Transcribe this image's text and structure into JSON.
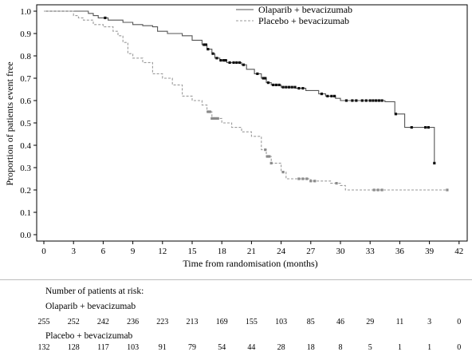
{
  "chart_data": {
    "type": "line",
    "xlabel": "Time from randomisation (months)",
    "ylabel": "Proportion of patients event free",
    "xlim": [
      0,
      42
    ],
    "ylim": [
      0,
      1.0
    ],
    "x_ticks": [
      0,
      3,
      6,
      9,
      12,
      15,
      18,
      21,
      24,
      27,
      30,
      33,
      36,
      39,
      42
    ],
    "y_ticks": [
      "0.0",
      "0.1",
      "0.2",
      "0.3",
      "0.4",
      "0.5",
      "0.6",
      "0.7",
      "0.8",
      "0.9",
      "1.0"
    ],
    "legend_position": "top-right",
    "series": [
      {
        "name": "Olaparib + bevacizumab",
        "color": "#555555",
        "style": "solid",
        "steps": [
          [
            0,
            1.0
          ],
          [
            4.5,
            0.99
          ],
          [
            5,
            0.98
          ],
          [
            5.5,
            0.97
          ],
          [
            6.5,
            0.96
          ],
          [
            8,
            0.95
          ],
          [
            9,
            0.94
          ],
          [
            10,
            0.935
          ],
          [
            11,
            0.93
          ],
          [
            11.5,
            0.91
          ],
          [
            12.5,
            0.9
          ],
          [
            14,
            0.89
          ],
          [
            15,
            0.87
          ],
          [
            16,
            0.85
          ],
          [
            16.5,
            0.83
          ],
          [
            17,
            0.81
          ],
          [
            17.3,
            0.79
          ],
          [
            17.8,
            0.78
          ],
          [
            18.5,
            0.77
          ],
          [
            20,
            0.76
          ],
          [
            20.5,
            0.74
          ],
          [
            21.3,
            0.72
          ],
          [
            22,
            0.7
          ],
          [
            22.5,
            0.68
          ],
          [
            23,
            0.67
          ],
          [
            24,
            0.66
          ],
          [
            25.5,
            0.655
          ],
          [
            26.5,
            0.645
          ],
          [
            27.8,
            0.63
          ],
          [
            28.5,
            0.62
          ],
          [
            29.5,
            0.61
          ],
          [
            30,
            0.6
          ],
          [
            34.5,
            0.595
          ],
          [
            35.5,
            0.54
          ],
          [
            36.5,
            0.48
          ],
          [
            39.5,
            0.32
          ]
        ],
        "censor_x": [
          6.2,
          16.2,
          16.4,
          16.6,
          17.1,
          17.5,
          17.9,
          18.2,
          18.4,
          18.8,
          19.2,
          19.5,
          19.8,
          20.2,
          21.6,
          22.2,
          22.4,
          22.7,
          23.2,
          23.5,
          23.8,
          24.2,
          24.5,
          24.8,
          25.1,
          25.4,
          25.8,
          26.2,
          28.1,
          28.7,
          29.1,
          29.4,
          30.6,
          31.2,
          31.6,
          32.2,
          32.6,
          33.0,
          33.3,
          33.6,
          33.9,
          34.2,
          35.6,
          37.2,
          38.6,
          38.9,
          39.5
        ],
        "end_x": 39.6
      },
      {
        "name": "Placebo + bevacizumab",
        "color": "#9a9a9a",
        "style": "dashed",
        "steps": [
          [
            0,
            1.0
          ],
          [
            3,
            0.98
          ],
          [
            3.5,
            0.97
          ],
          [
            4,
            0.96
          ],
          [
            5,
            0.94
          ],
          [
            6,
            0.93
          ],
          [
            7,
            0.91
          ],
          [
            7.5,
            0.89
          ],
          [
            8,
            0.86
          ],
          [
            8.5,
            0.81
          ],
          [
            9,
            0.79
          ],
          [
            10,
            0.77
          ],
          [
            11,
            0.72
          ],
          [
            12,
            0.7
          ],
          [
            13,
            0.67
          ],
          [
            14,
            0.62
          ],
          [
            15,
            0.6
          ],
          [
            16,
            0.58
          ],
          [
            16.5,
            0.55
          ],
          [
            17,
            0.52
          ],
          [
            18,
            0.5
          ],
          [
            19,
            0.48
          ],
          [
            20,
            0.46
          ],
          [
            21,
            0.44
          ],
          [
            22,
            0.38
          ],
          [
            22.5,
            0.35
          ],
          [
            23,
            0.32
          ],
          [
            24,
            0.28
          ],
          [
            24.5,
            0.25
          ],
          [
            27,
            0.24
          ],
          [
            29,
            0.23
          ],
          [
            30,
            0.22
          ],
          [
            30.5,
            0.2
          ],
          [
            40.8,
            0.2
          ]
        ],
        "censor_x": [
          16.6,
          16.8,
          17.0,
          17.2,
          17.4,
          17.6,
          22.4,
          22.6,
          22.8,
          23.0,
          24.2,
          25.8,
          26.2,
          26.6,
          27.0,
          27.4,
          29.6,
          33.4,
          33.8,
          34.2,
          40.8
        ],
        "end_x": 40.8
      }
    ]
  },
  "risk_table": {
    "title": "Number of patients at risk:",
    "timepoints": [
      0,
      3,
      6,
      9,
      12,
      15,
      18,
      21,
      24,
      27,
      30,
      33,
      36,
      39,
      42
    ],
    "groups": [
      {
        "name": "Olaparib + bevacizumab",
        "counts": [
          "255",
          "252",
          "242",
          "236",
          "223",
          "213",
          "169",
          "155",
          "103",
          "85",
          "46",
          "29",
          "11",
          "3",
          "0"
        ]
      },
      {
        "name": "Placebo + bevacizumab",
        "counts": [
          "132",
          "128",
          "117",
          "103",
          "91",
          "79",
          "54",
          "44",
          "28",
          "18",
          "8",
          "5",
          "1",
          "1",
          "0"
        ]
      }
    ]
  }
}
